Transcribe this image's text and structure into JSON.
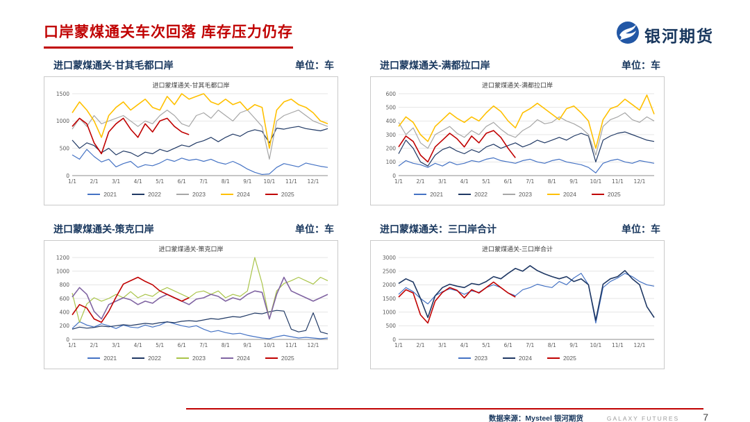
{
  "page": {
    "title": "口岸蒙煤通关车次回落 库存压力仍存",
    "logo_text": "银河期货",
    "footer": {
      "source": "数据来源：Mysteel 银河期货",
      "brand": "GALAXY FUTURES",
      "page_number": "7"
    },
    "theme": {
      "accent_red": "#C00000",
      "brand_navy": "#17365D"
    }
  },
  "chart_data": [
    {
      "type": "line",
      "header_title": "进口蒙煤通关-甘其毛都口岸",
      "unit": "单位：车",
      "inner_title": "进口蒙煤通关-甘其毛都口岸",
      "ylim": [
        0,
        1500
      ],
      "yticks": [
        0,
        500,
        1000,
        1500
      ],
      "x_labels": [
        "1/1",
        "2/1",
        "3/1",
        "4/1",
        "5/1",
        "6/1",
        "7/1",
        "8/1",
        "9/1",
        "10/1",
        "11/1",
        "12/1"
      ],
      "legend_position": "bottom",
      "grid": "horizontal",
      "series": [
        {
          "name": "2021",
          "color": "#4472C4",
          "values": [
            380,
            300,
            480,
            350,
            250,
            300,
            160,
            220,
            260,
            150,
            200,
            180,
            230,
            300,
            260,
            320,
            280,
            300,
            260,
            300,
            240,
            210,
            260,
            200,
            120,
            60,
            20,
            30,
            150,
            220,
            190,
            160,
            230,
            200,
            170,
            150
          ]
        },
        {
          "name": "2022",
          "color": "#1F3864",
          "values": [
            650,
            500,
            600,
            550,
            420,
            500,
            380,
            450,
            420,
            350,
            430,
            400,
            480,
            440,
            500,
            560,
            530,
            600,
            640,
            700,
            620,
            700,
            760,
            720,
            800,
            840,
            810,
            600,
            870,
            850,
            880,
            900,
            860,
            840,
            820,
            860
          ]
        },
        {
          "name": "2023",
          "color": "#A6A6A6",
          "values": [
            850,
            1050,
            900,
            1100,
            950,
            1000,
            1050,
            1100,
            1000,
            900,
            1000,
            950,
            1100,
            1200,
            1100,
            950,
            900,
            1100,
            1150,
            1050,
            1200,
            1100,
            1000,
            1150,
            1200,
            1050,
            900,
            300,
            1000,
            1100,
            1150,
            1200,
            1100,
            1000,
            950,
            900
          ]
        },
        {
          "name": "2024",
          "color": "#FFC000",
          "values": [
            1150,
            1350,
            1200,
            1000,
            700,
            1100,
            1250,
            1350,
            1200,
            1300,
            1400,
            1250,
            1200,
            1450,
            1300,
            1500,
            1400,
            1450,
            1500,
            1350,
            1300,
            1400,
            1300,
            1350,
            1200,
            1300,
            1250,
            500,
            1200,
            1350,
            1400,
            1300,
            1250,
            1150,
            1000,
            950
          ]
        },
        {
          "name": "2025",
          "color": "#C00000",
          "values": [
            900,
            1050,
            950,
            600,
            400,
            800,
            950,
            1050,
            850,
            700,
            950,
            800,
            1000,
            1050,
            900,
            800,
            750,
            null,
            null,
            null,
            null,
            null,
            null,
            null,
            null,
            null,
            null,
            null,
            null,
            null,
            null,
            null,
            null,
            null,
            null,
            null
          ]
        }
      ]
    },
    {
      "type": "line",
      "header_title": "进口蒙煤通关-满都拉口岸",
      "unit": "单位：车",
      "inner_title": "进口蒙煤通关-满都拉口岸",
      "ylim": [
        0,
        600
      ],
      "yticks": [
        0,
        100,
        200,
        300,
        400,
        500,
        600
      ],
      "x_labels": [
        "1/1",
        "2/1",
        "3/1",
        "4/1",
        "5/1",
        "6/1",
        "7/1",
        "8/1",
        "9/1",
        "10/1",
        "11/1",
        "12/1"
      ],
      "legend_position": "bottom",
      "grid": "horizontal",
      "series": [
        {
          "name": "2021",
          "color": "#4472C4",
          "values": [
            70,
            110,
            90,
            80,
            60,
            90,
            70,
            100,
            80,
            90,
            110,
            100,
            120,
            130,
            110,
            100,
            90,
            110,
            120,
            100,
            90,
            110,
            120,
            100,
            90,
            80,
            60,
            20,
            90,
            110,
            120,
            100,
            90,
            110,
            100,
            90
          ]
        },
        {
          "name": "2022",
          "color": "#1F3864",
          "values": [
            160,
            260,
            200,
            100,
            70,
            150,
            190,
            210,
            180,
            160,
            190,
            170,
            210,
            230,
            200,
            220,
            240,
            210,
            230,
            260,
            240,
            260,
            280,
            260,
            290,
            310,
            290,
            100,
            260,
            290,
            310,
            320,
            300,
            280,
            260,
            250
          ]
        },
        {
          "name": "2023",
          "color": "#A6A6A6",
          "values": [
            390,
            300,
            350,
            240,
            200,
            300,
            330,
            360,
            310,
            280,
            330,
            300,
            360,
            390,
            340,
            300,
            280,
            330,
            360,
            410,
            380,
            390,
            430,
            400,
            380,
            350,
            300,
            150,
            360,
            410,
            430,
            460,
            410,
            390,
            430,
            400
          ]
        },
        {
          "name": "2024",
          "color": "#FFC000",
          "values": [
            360,
            430,
            390,
            300,
            250,
            360,
            410,
            460,
            420,
            390,
            430,
            400,
            460,
            510,
            470,
            400,
            350,
            460,
            490,
            530,
            490,
            450,
            410,
            490,
            510,
            460,
            400,
            200,
            410,
            490,
            510,
            560,
            520,
            480,
            590,
            450
          ]
        },
        {
          "name": "2025",
          "color": "#C00000",
          "values": [
            210,
            290,
            250,
            150,
            100,
            210,
            260,
            310,
            270,
            210,
            290,
            240,
            310,
            330,
            280,
            200,
            130,
            null,
            null,
            null,
            null,
            null,
            null,
            null,
            null,
            null,
            null,
            null,
            null,
            null,
            null,
            null,
            null,
            null,
            null,
            null
          ]
        }
      ]
    },
    {
      "type": "line",
      "header_title": "进口蒙煤通关-策克口岸",
      "unit": "单位：车",
      "inner_title": "进口蒙煤通关-策克口岸",
      "ylim": [
        0,
        1200
      ],
      "yticks": [
        0,
        200,
        400,
        600,
        800,
        1000,
        1200
      ],
      "x_labels": [
        "1/1",
        "2/1",
        "3/1",
        "4/1",
        "5/1",
        "6/1",
        "7/1",
        "8/1",
        "9/1",
        "10/1",
        "11/1",
        "12/1"
      ],
      "legend_position": "bottom",
      "grid": "horizontal",
      "series": [
        {
          "name": "2021",
          "color": "#4472C4",
          "values": [
            160,
            260,
            210,
            180,
            230,
            200,
            160,
            210,
            180,
            170,
            210,
            180,
            210,
            260,
            230,
            200,
            180,
            200,
            150,
            110,
            130,
            100,
            80,
            90,
            60,
            40,
            20,
            10,
            40,
            60,
            40,
            20,
            30,
            20,
            10,
            20
          ]
        },
        {
          "name": "2022",
          "color": "#1F3864",
          "values": [
            150,
            180,
            165,
            175,
            195,
            185,
            200,
            215,
            205,
            220,
            235,
            225,
            245,
            255,
            245,
            265,
            275,
            265,
            285,
            305,
            295,
            315,
            335,
            325,
            355,
            385,
            375,
            405,
            425,
            415,
            150,
            110,
            130,
            390,
            110,
            80
          ]
        },
        {
          "name": "2023",
          "color": "#A9C449",
          "values": [
            680,
            250,
            520,
            610,
            560,
            600,
            660,
            610,
            700,
            610,
            660,
            630,
            710,
            760,
            710,
            660,
            610,
            690,
            710,
            660,
            710,
            610,
            660,
            630,
            710,
            1200,
            820,
            300,
            710,
            820,
            860,
            910,
            860,
            810,
            910,
            860
          ]
        },
        {
          "name": "2024",
          "color": "#8064A2",
          "values": [
            620,
            760,
            660,
            410,
            300,
            510,
            560,
            610,
            580,
            510,
            560,
            530,
            610,
            660,
            610,
            560,
            510,
            590,
            610,
            660,
            630,
            560,
            610,
            580,
            660,
            710,
            690,
            300,
            660,
            910,
            710,
            660,
            610,
            560,
            610,
            660
          ]
        },
        {
          "name": "2025",
          "color": "#C00000",
          "values": [
            360,
            510,
            460,
            300,
            250,
            410,
            620,
            810,
            860,
            910,
            850,
            800,
            710,
            660,
            610,
            560,
            610,
            null,
            null,
            null,
            null,
            null,
            null,
            null,
            null,
            null,
            null,
            null,
            null,
            null,
            null,
            null,
            null,
            null,
            null,
            null
          ]
        }
      ]
    },
    {
      "type": "line",
      "header_title": "进口蒙煤通关：三口岸合计",
      "unit": "单位：车",
      "inner_title": "进口蒙煤通关-三口岸合计",
      "ylim": [
        0,
        3000
      ],
      "yticks": [
        0,
        500,
        1000,
        1500,
        2000,
        2500,
        3000
      ],
      "x_labels": [
        "1/1",
        "2/1",
        "3/1",
        "4/1",
        "5/1",
        "6/1",
        "7/1",
        "8/1",
        "9/1",
        "10/1",
        "11/1",
        "12/1"
      ],
      "legend_position": "bottom",
      "grid": "horizontal",
      "series": [
        {
          "name": "2023",
          "color": "#4472C4",
          "values": [
            1650,
            1900,
            1750,
            1500,
            1300,
            1600,
            1750,
            1850,
            1780,
            1650,
            1780,
            1720,
            1900,
            2000,
            1900,
            1700,
            1600,
            1820,
            1900,
            2020,
            1950,
            1900,
            2120,
            2000,
            2250,
            2420,
            2000,
            600,
            1900,
            2120,
            2250,
            2420,
            2300,
            2120,
            2000,
            1950
          ]
        },
        {
          "name": "2024",
          "color": "#1F3864",
          "values": [
            2050,
            2220,
            2100,
            1500,
            800,
            1600,
            1900,
            2020,
            1950,
            1900,
            2050,
            2000,
            2120,
            2300,
            2220,
            2420,
            2600,
            2500,
            2700,
            2520,
            2400,
            2300,
            2220,
            2300,
            2120,
            2220,
            2000,
            700,
            2020,
            2220,
            2300,
            2520,
            2220,
            2000,
            1200,
            800
          ]
        },
        {
          "name": "2025",
          "color": "#C00000",
          "values": [
            1550,
            1820,
            1700,
            900,
            600,
            1400,
            1720,
            1900,
            1800,
            1520,
            1820,
            1700,
            1900,
            2100,
            1900,
            1700,
            1550,
            null,
            null,
            null,
            null,
            null,
            null,
            null,
            null,
            null,
            null,
            null,
            null,
            null,
            null,
            null,
            null,
            null,
            null,
            null
          ]
        }
      ]
    }
  ]
}
